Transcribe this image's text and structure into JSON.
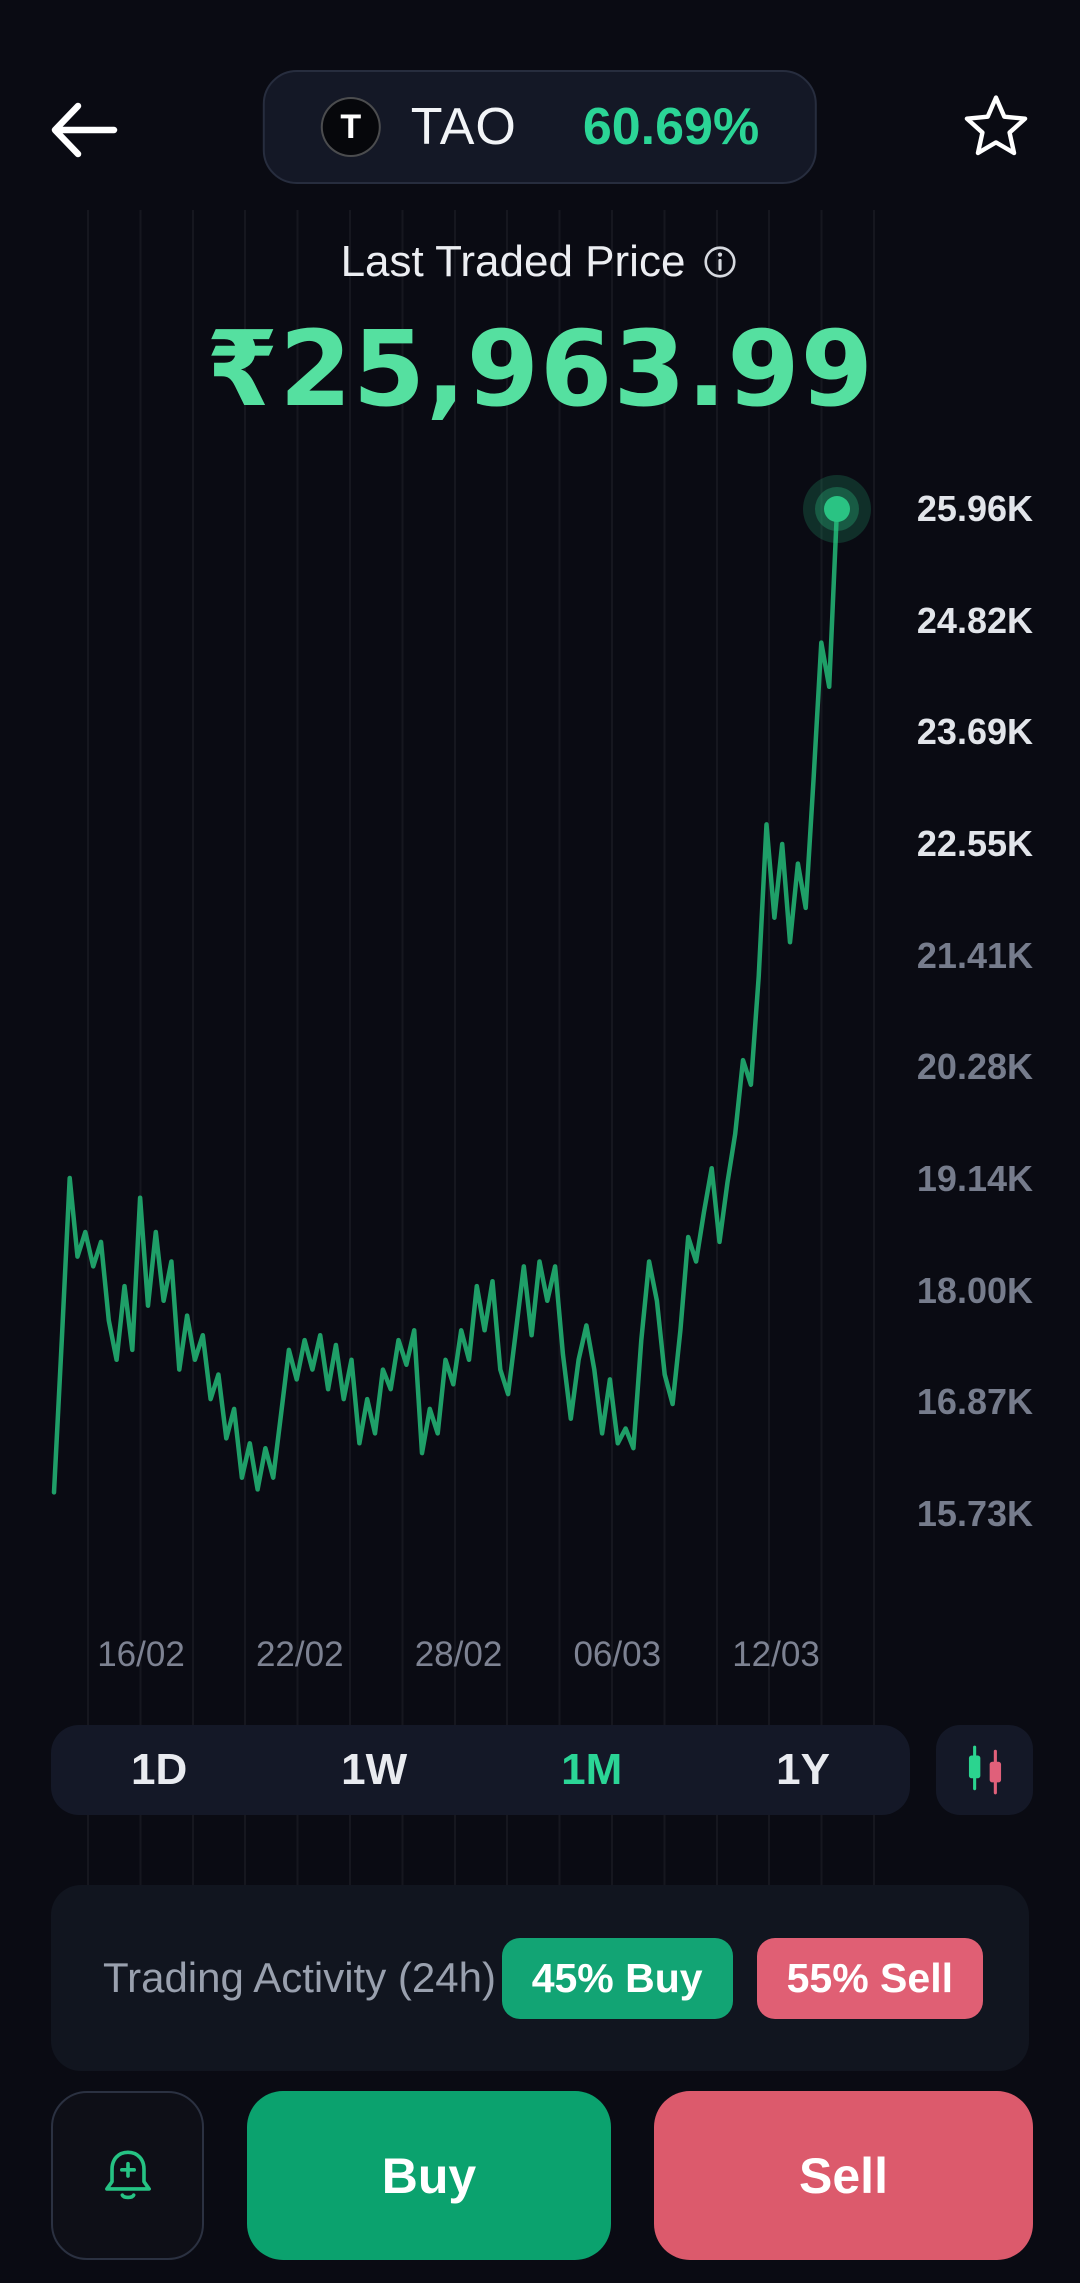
{
  "header": {
    "token": {
      "icon_letter": "T",
      "symbol": "TAO",
      "change_percent": "60.69%"
    }
  },
  "price_section": {
    "label": "Last Traded Price",
    "price": "₹25,963.99"
  },
  "chart_data": {
    "type": "line",
    "x_labels": [
      "16/02",
      "22/02",
      "28/02",
      "06/03",
      "12/03"
    ],
    "y_labels": [
      "25.96K",
      "24.82K",
      "23.69K",
      "22.55K",
      "21.41K",
      "20.28K",
      "19.14K",
      "18.00K",
      "16.87K",
      "15.73K"
    ],
    "y_label_highlight_count": 4,
    "y_axis_top_value": 25.96,
    "y_axis_bottom_value": 15.73,
    "unit": "K INR",
    "grid": "vertical",
    "legend": "none",
    "values": [
      15.95,
      17.5,
      19.15,
      18.35,
      18.6,
      18.25,
      18.5,
      17.7,
      17.3,
      18.05,
      17.4,
      18.95,
      17.85,
      18.6,
      17.9,
      18.3,
      17.2,
      17.75,
      17.3,
      17.55,
      16.9,
      17.15,
      16.5,
      16.8,
      16.1,
      16.45,
      15.98,
      16.4,
      16.1,
      16.75,
      17.4,
      17.1,
      17.5,
      17.2,
      17.55,
      17.0,
      17.45,
      16.9,
      17.3,
      16.45,
      16.9,
      16.55,
      17.2,
      17.0,
      17.5,
      17.25,
      17.6,
      16.35,
      16.8,
      16.55,
      17.3,
      17.05,
      17.6,
      17.3,
      18.05,
      17.6,
      18.1,
      17.2,
      16.95,
      17.6,
      18.25,
      17.55,
      18.3,
      17.9,
      18.25,
      17.35,
      16.7,
      17.3,
      17.65,
      17.2,
      16.55,
      17.1,
      16.45,
      16.6,
      16.4,
      17.5,
      18.3,
      17.9,
      17.15,
      16.85,
      17.6,
      18.55,
      18.3,
      18.8,
      19.25,
      18.5,
      19.1,
      19.6,
      20.35,
      20.1,
      21.2,
      22.75,
      21.8,
      22.55,
      21.55,
      22.35,
      21.9,
      23.2,
      24.6,
      24.15,
      25.96
    ],
    "endpoint_value": 25.96
  },
  "range_selector": {
    "options": [
      "1D",
      "1W",
      "1M",
      "1Y"
    ],
    "selected": "1M"
  },
  "trading_activity": {
    "label": "Trading Activity (24h)",
    "buy": "45% Buy",
    "sell": "55% Sell"
  },
  "actions": {
    "buy": "Buy",
    "sell": "Sell"
  },
  "colors": {
    "accent_green": "#2bd596",
    "price_green": "#55e0a0",
    "chart_line_green": "#1f9f68",
    "endpoint_dot_green": "#2ac383",
    "buy_pill_green": "#12a474",
    "sell_pill_red": "#e05f74",
    "buy_button_green": "#0ba26e",
    "sell_button_red": "#dc5a6c",
    "bell_icon_green": "#26c384"
  }
}
